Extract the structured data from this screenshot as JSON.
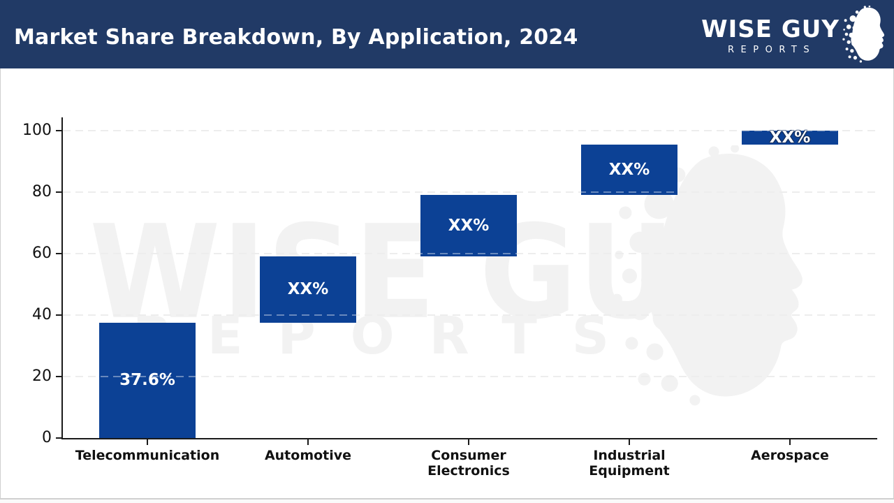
{
  "header": {
    "title": "Market Share Breakdown, By Application, 2024",
    "logo": {
      "title": "WISE GUY",
      "subtitle": "REPORTS"
    }
  },
  "watermark": {
    "title": "WISE GUY",
    "subtitle": "REPORTS"
  },
  "chart_data": {
    "type": "bar",
    "subtype": "waterfall",
    "title": "Market Share Breakdown, By Application, 2024",
    "xlabel": "",
    "ylabel": "",
    "ylim": [
      0,
      105
    ],
    "yticks": [
      0,
      20,
      40,
      60,
      80,
      100
    ],
    "grid": "dashed-horizontal",
    "bar_color": "#0c4195",
    "axis_color": "#1a1a1a",
    "categories": [
      "Telecommunication",
      "Automotive",
      "Consumer Electronics",
      "Industrial Equipment",
      "Aerospace"
    ],
    "segments": [
      {
        "category": "Telecommunication",
        "category_lines": [
          "Telecommunication"
        ],
        "start": 0,
        "end": 37.6,
        "label": "37.6%"
      },
      {
        "category": "Automotive",
        "category_lines": [
          "Automotive"
        ],
        "start": 37.6,
        "end": 59.0,
        "label": "XX%"
      },
      {
        "category": "Consumer Electronics",
        "category_lines": [
          "Consumer",
          "Electronics"
        ],
        "start": 59.0,
        "end": 79.0,
        "label": "XX%"
      },
      {
        "category": "Industrial Equipment",
        "category_lines": [
          "Industrial",
          "Equipment"
        ],
        "start": 79.0,
        "end": 95.5,
        "label": "XX%"
      },
      {
        "category": "Aerospace",
        "category_lines": [
          "Aerospace"
        ],
        "start": 95.5,
        "end": 100.0,
        "label": "XX%"
      }
    ]
  }
}
